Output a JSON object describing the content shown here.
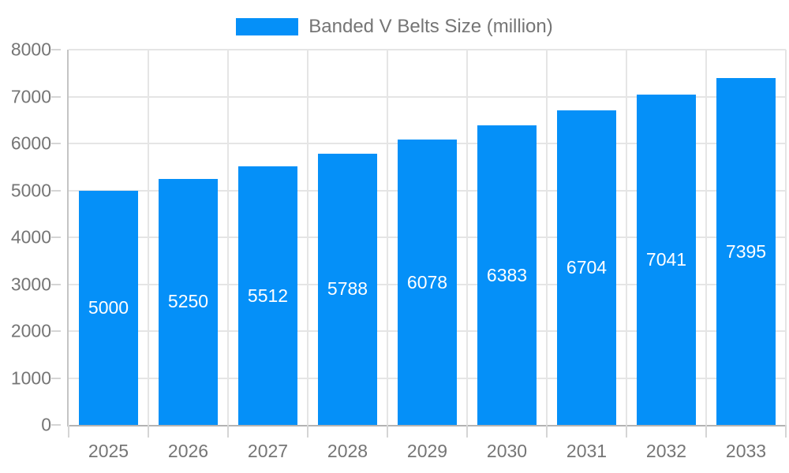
{
  "chart_data": {
    "type": "bar",
    "categories": [
      "2025",
      "2026",
      "2027",
      "2028",
      "2029",
      "2030",
      "2031",
      "2032",
      "2033"
    ],
    "series": [
      {
        "name": "Banded V Belts Size (million)",
        "values": [
          5000,
          5250,
          5512,
          5788,
          6078,
          6383,
          6704,
          7041,
          7395
        ]
      }
    ],
    "xlabel": "",
    "ylabel": "",
    "ylim": [
      0,
      8000
    ],
    "ytick_step": 1000,
    "ytick_labels": [
      "0",
      "1000",
      "2000",
      "3000",
      "4000",
      "5000",
      "6000",
      "7000",
      "8000"
    ],
    "grid": true,
    "value_labels_shown": true,
    "legend": {
      "label": "Banded V Belts Size (million)",
      "position": "top-center"
    },
    "colors": {
      "bar": "#0590f8",
      "value_label_text": "#ffffff",
      "axis_text": "#757575",
      "gridline": "#e5e5e5",
      "axis_line_x": "#b3b3b3",
      "axis_line_y": "#c4c4c4",
      "tick": "#d5d5d5",
      "background": "#ffffff"
    }
  }
}
